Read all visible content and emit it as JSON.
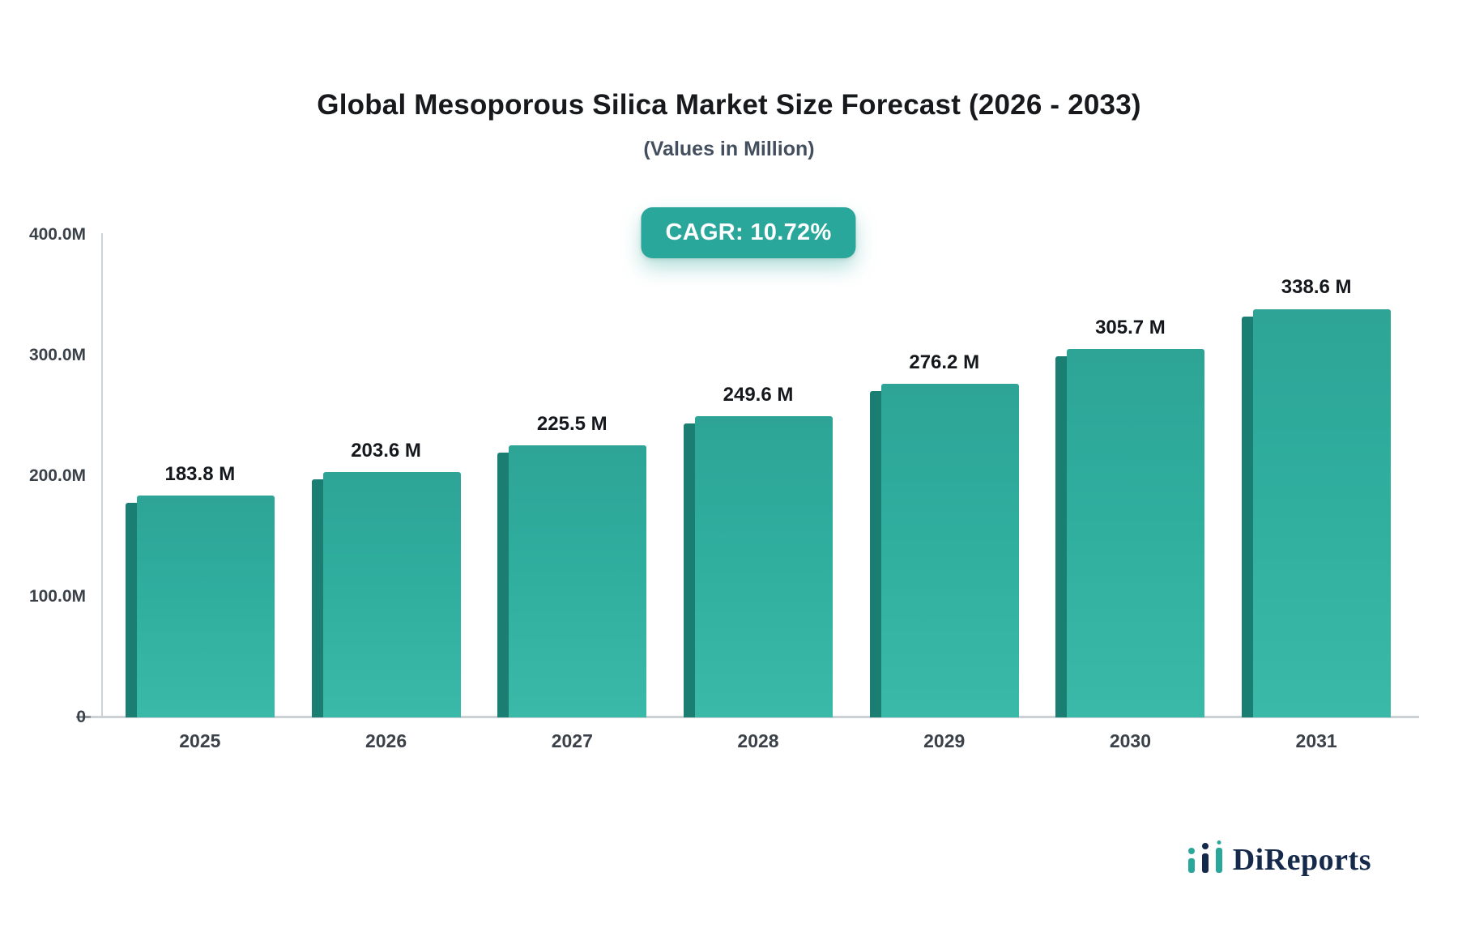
{
  "header": {
    "title": "Global Mesoporous Silica Market Size Forecast (2026 - 2033)",
    "subtitle": "(Values in Million)"
  },
  "badge": {
    "label": "CAGR: 10.72%"
  },
  "chart_data": {
    "type": "bar",
    "title": "Global Mesoporous Silica Market Size Forecast (2026 - 2033)",
    "subtitle": "(Values in Million)",
    "categories": [
      "2025",
      "2026",
      "2027",
      "2028",
      "2029",
      "2030",
      "2031"
    ],
    "values": [
      183.8,
      203.6,
      225.5,
      249.6,
      276.2,
      305.7,
      338.6
    ],
    "value_labels": [
      "183.8 M",
      "203.6 M",
      "225.5 M",
      "249.6 M",
      "276.2 M",
      "305.7 M",
      "338.6 M"
    ],
    "xlabel": "",
    "ylabel": "",
    "ylim": [
      0,
      400
    ],
    "yticks": [
      {
        "value": 0,
        "label": "0"
      },
      {
        "value": 100,
        "label": "100.0M"
      },
      {
        "value": 200,
        "label": "200.0M"
      },
      {
        "value": 300,
        "label": "300.0M"
      },
      {
        "value": 400,
        "label": "400.0M"
      }
    ],
    "grid": false,
    "legend": false,
    "annotations": [
      "CAGR: 10.72%"
    ],
    "bar_color": "#2fae9e",
    "bar_side_color": "#1a7e73",
    "badge_color": "#2aa79b"
  },
  "logo": {
    "text": "DiReports",
    "icon": "bar-chart-logo-icon",
    "text_color": "#15294b",
    "icon_color": "#2aa79b"
  }
}
